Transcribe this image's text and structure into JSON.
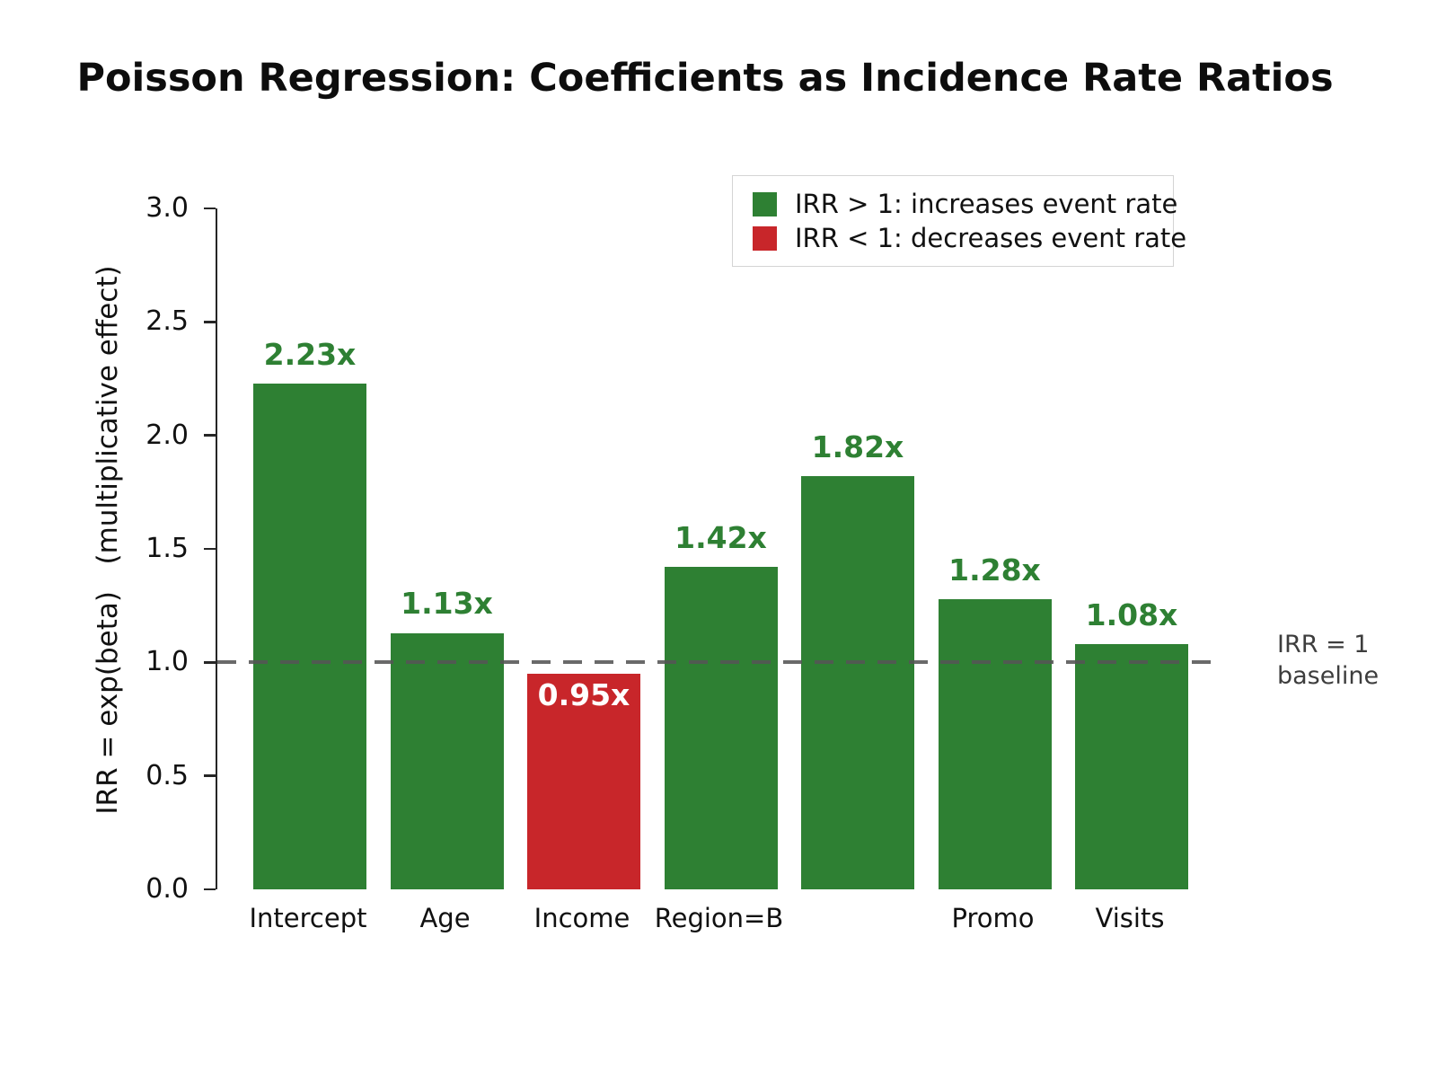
{
  "chart_data": {
    "type": "bar",
    "title": "Poisson Regression: Coefficients as Incidence Rate Ratios",
    "ylabel": "IRR = exp(beta)   (multiplicative effect)",
    "xlabel": "",
    "categories": [
      "Intercept",
      "Age",
      "Income",
      "Region=B",
      "",
      "Promo",
      "Visits"
    ],
    "values": [
      2.23,
      1.13,
      0.95,
      1.42,
      1.82,
      1.28,
      1.08
    ],
    "bar_labels": [
      "2.23x",
      "1.13x",
      "0.95x",
      "1.42x",
      "1.82x",
      "1.28x",
      "1.08x"
    ],
    "ylim": [
      0,
      3.0
    ],
    "ytick_labels": [
      "0.0",
      "0.5",
      "1.0",
      "1.5",
      "2.0",
      "2.5",
      "3.0"
    ],
    "yticks": [
      0.0,
      0.5,
      1.0,
      1.5,
      2.0,
      2.5,
      3.0
    ],
    "grid": false,
    "baseline": {
      "value": 1.0,
      "label_line1": "IRR = 1",
      "label_line2": "baseline"
    },
    "legend": {
      "position": "upper right",
      "items": [
        {
          "label": "IRR > 1: increases event rate",
          "color": "#2e8033"
        },
        {
          "label": "IRR < 1: decreases event rate",
          "color": "#c8262a"
        }
      ]
    },
    "colors": {
      "positive_bar": "#2e8033",
      "negative_bar": "#c8262a",
      "positive_label_text": "#2e8033",
      "negative_label_text": "#ffffff",
      "baseline_dash": "#555555",
      "annotation_text": "#3d3d3d",
      "axis": "#262626"
    }
  }
}
